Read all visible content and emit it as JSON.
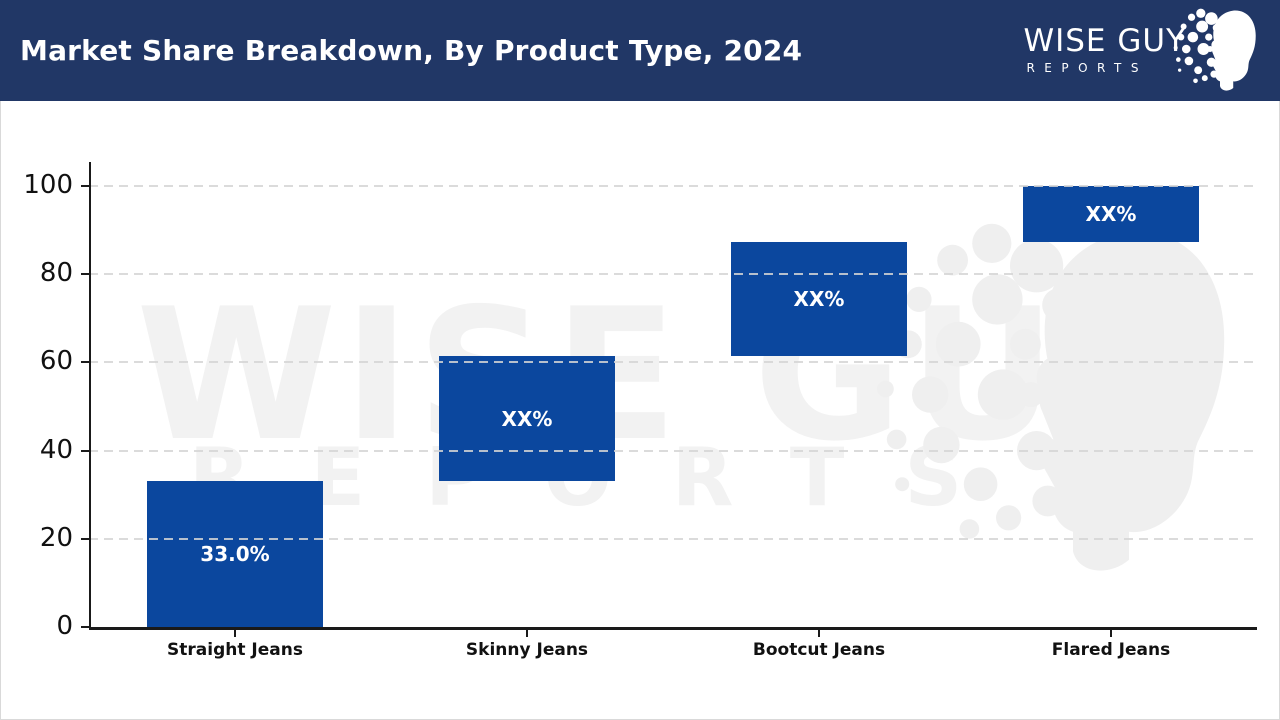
{
  "colors": {
    "header_bg": "#213766",
    "bar": "#0b479e",
    "grid": "#d5d5d5",
    "axis": "#1a1a1a",
    "watermark": "#f2f2f2",
    "title_text": "#ffffff",
    "bar_label_text": "#ffffff"
  },
  "header": {
    "title": "Market Share Breakdown, By Product Type, 2024",
    "brand_line1": "WISE GUY",
    "brand_line2": "REPORTS"
  },
  "watermark": {
    "line1": "WISE GUY",
    "line2": "REPORTS",
    "face_icon": "dotted-head-profile"
  },
  "chart_data": {
    "type": "bar",
    "subtype": "waterfall",
    "title": "Market Share Breakdown, By Product Type, 2024",
    "categories": [
      "Straight Jeans",
      "Skinny Jeans",
      "Bootcut Jeans",
      "Flared Jeans"
    ],
    "segments": [
      {
        "category": "Straight Jeans",
        "start": 0.0,
        "end": 33.0,
        "label": "33.0%"
      },
      {
        "category": "Skinny Jeans",
        "start": 33.0,
        "end": 61.5,
        "label": "XX%"
      },
      {
        "category": "Bootcut Jeans",
        "start": 61.5,
        "end": 87.3,
        "label": "XX%"
      },
      {
        "category": "Flared Jeans",
        "start": 87.3,
        "end": 100.0,
        "label": "XX%"
      }
    ],
    "values_segment_heights": [
      33.0,
      28.5,
      25.8,
      12.7
    ],
    "xlabel": "",
    "ylabel": "",
    "yticks": [
      0,
      20,
      40,
      60,
      80,
      100
    ],
    "ylim": [
      0,
      105
    ],
    "grid": "horizontal-dashed",
    "legend": "none"
  }
}
